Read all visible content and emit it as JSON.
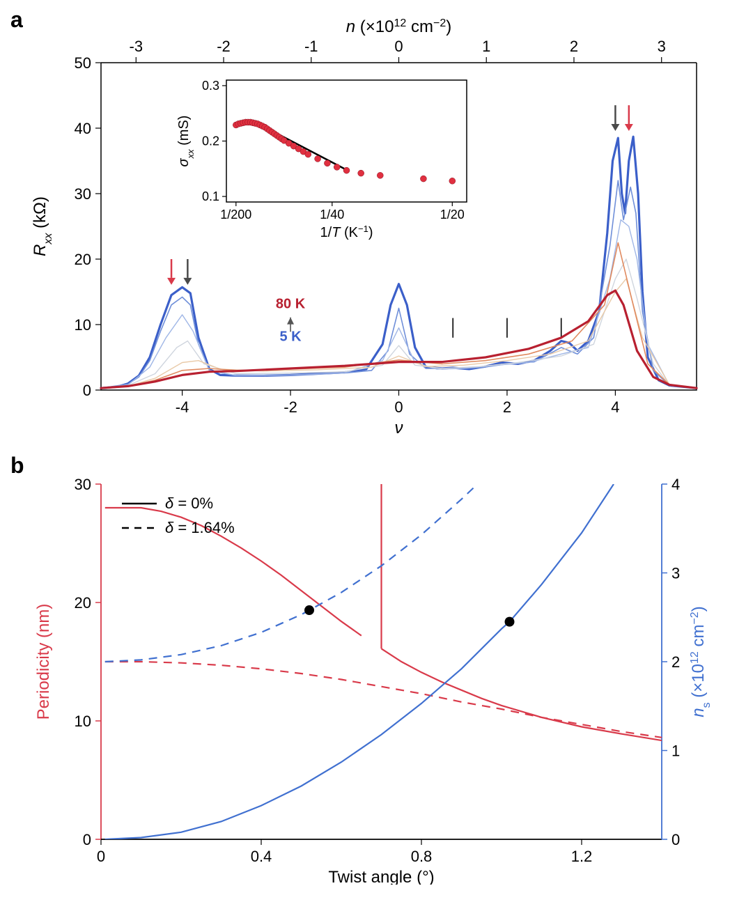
{
  "panel_a": {
    "label": "a",
    "x_domain": [
      -5.5,
      5.5
    ],
    "y_domain": [
      0,
      50
    ],
    "x_ticks": [
      -4,
      -2,
      0,
      2,
      4
    ],
    "y_ticks": [
      0,
      10,
      20,
      30,
      40,
      50
    ],
    "top_ticks": [
      -3,
      -2,
      -1,
      0,
      1,
      2,
      3
    ],
    "x_label": "ν",
    "y_label": "R_{xx} (kΩ)",
    "top_label": "n (×10^{12} cm^{-2})",
    "temp_annot": {
      "cold": "5 K",
      "hot": "80 K",
      "cold_color": "#3b5fc9",
      "hot_color": "#b82030"
    },
    "arrows": {
      "left_red": {
        "x": -4.2,
        "color": "#d93a4a"
      },
      "left_black": {
        "x": -3.9,
        "color": "#4a4a4a"
      },
      "right_black": {
        "x": 4.0,
        "color": "#4a4a4a"
      },
      "right_red": {
        "x": 4.25,
        "color": "#d93a4a"
      }
    },
    "vlines": [
      1,
      2,
      3
    ],
    "series": [
      {
        "color": "#3b5fc9",
        "width": 3.2,
        "pts": [
          [
            -5.5,
            0.3
          ],
          [
            -5.2,
            0.5
          ],
          [
            -5.0,
            1.0
          ],
          [
            -4.8,
            2.2
          ],
          [
            -4.6,
            5
          ],
          [
            -4.4,
            10
          ],
          [
            -4.2,
            14.5
          ],
          [
            -4.0,
            15.7
          ],
          [
            -3.85,
            14.8
          ],
          [
            -3.7,
            8
          ],
          [
            -3.5,
            3.2
          ],
          [
            -3.3,
            2.3
          ],
          [
            -3.0,
            2.2
          ],
          [
            -2.5,
            2.2
          ],
          [
            -2.0,
            2.3
          ],
          [
            -1.5,
            2.5
          ],
          [
            -1.0,
            2.7
          ],
          [
            -0.6,
            3.2
          ],
          [
            -0.3,
            7
          ],
          [
            -0.15,
            13
          ],
          [
            0.0,
            16.2
          ],
          [
            0.15,
            13
          ],
          [
            0.3,
            6.5
          ],
          [
            0.5,
            3.5
          ],
          [
            0.8,
            3.3
          ],
          [
            1.0,
            3.4
          ],
          [
            1.3,
            3.2
          ],
          [
            1.6,
            3.6
          ],
          [
            1.9,
            4.2
          ],
          [
            2.2,
            4.0
          ],
          [
            2.5,
            4.5
          ],
          [
            2.8,
            6.0
          ],
          [
            3.0,
            7.5
          ],
          [
            3.15,
            7.2
          ],
          [
            3.3,
            6.0
          ],
          [
            3.5,
            7.5
          ],
          [
            3.7,
            12
          ],
          [
            3.85,
            24
          ],
          [
            3.95,
            35
          ],
          [
            4.05,
            38.5
          ],
          [
            4.12,
            30
          ],
          [
            4.18,
            27
          ],
          [
            4.25,
            35
          ],
          [
            4.33,
            38.7
          ],
          [
            4.42,
            30
          ],
          [
            4.5,
            15
          ],
          [
            4.6,
            5
          ],
          [
            4.8,
            1.5
          ],
          [
            5.0,
            0.7
          ],
          [
            5.5,
            0.3
          ]
        ]
      },
      {
        "color": "#6f8fd9",
        "width": 1.6,
        "pts": [
          [
            -5.5,
            0.3
          ],
          [
            -5.0,
            0.9
          ],
          [
            -4.8,
            2.0
          ],
          [
            -4.6,
            4.5
          ],
          [
            -4.4,
            9
          ],
          [
            -4.2,
            13
          ],
          [
            -4.0,
            14.2
          ],
          [
            -3.85,
            13
          ],
          [
            -3.7,
            7
          ],
          [
            -3.5,
            3.0
          ],
          [
            -3.0,
            2.2
          ],
          [
            -2.0,
            2.3
          ],
          [
            -1.0,
            2.6
          ],
          [
            -0.5,
            3.0
          ],
          [
            -0.2,
            6
          ],
          [
            0.0,
            12.5
          ],
          [
            0.2,
            5.5
          ],
          [
            0.5,
            3.3
          ],
          [
            1.0,
            3.3
          ],
          [
            1.5,
            3.4
          ],
          [
            2.0,
            4.0
          ],
          [
            2.5,
            4.3
          ],
          [
            3.0,
            6.5
          ],
          [
            3.3,
            5.5
          ],
          [
            3.6,
            8
          ],
          [
            3.9,
            22
          ],
          [
            4.05,
            32
          ],
          [
            4.15,
            26
          ],
          [
            4.28,
            31
          ],
          [
            4.38,
            27
          ],
          [
            4.5,
            12
          ],
          [
            4.7,
            3
          ],
          [
            5.0,
            0.7
          ],
          [
            5.5,
            0.3
          ]
        ]
      },
      {
        "color": "#9fb6e6",
        "width": 1.4,
        "pts": [
          [
            -5.5,
            0.3
          ],
          [
            -5.0,
            0.8
          ],
          [
            -4.6,
            3.5
          ],
          [
            -4.3,
            8
          ],
          [
            -4.0,
            11.5
          ],
          [
            -3.8,
            9
          ],
          [
            -3.5,
            3.0
          ],
          [
            -3.0,
            2.2
          ],
          [
            -2.0,
            2.3
          ],
          [
            -1.0,
            2.6
          ],
          [
            -0.3,
            4.5
          ],
          [
            0.0,
            9.5
          ],
          [
            0.3,
            4.2
          ],
          [
            0.7,
            3.2
          ],
          [
            1.2,
            3.3
          ],
          [
            1.8,
            3.8
          ],
          [
            2.4,
            4.2
          ],
          [
            3.0,
            5.5
          ],
          [
            3.5,
            6.5
          ],
          [
            3.9,
            17
          ],
          [
            4.1,
            26
          ],
          [
            4.25,
            25
          ],
          [
            4.4,
            20
          ],
          [
            4.6,
            7
          ],
          [
            5.0,
            0.7
          ],
          [
            5.5,
            0.3
          ]
        ]
      },
      {
        "color": "#cfd5de",
        "width": 1.4,
        "pts": [
          [
            -5.5,
            0.3
          ],
          [
            -5.0,
            0.7
          ],
          [
            -4.5,
            2.5
          ],
          [
            -4.1,
            6.5
          ],
          [
            -3.9,
            7.5
          ],
          [
            -3.6,
            4
          ],
          [
            -3.0,
            2.5
          ],
          [
            -2.0,
            2.6
          ],
          [
            -1.0,
            2.8
          ],
          [
            -0.3,
            3.8
          ],
          [
            0.0,
            6.8
          ],
          [
            0.3,
            3.8
          ],
          [
            0.8,
            3.3
          ],
          [
            1.5,
            3.6
          ],
          [
            2.2,
            4.2
          ],
          [
            3.0,
            5.2
          ],
          [
            3.6,
            7
          ],
          [
            4.0,
            17
          ],
          [
            4.2,
            20
          ],
          [
            4.4,
            14
          ],
          [
            4.7,
            4
          ],
          [
            5.0,
            0.7
          ],
          [
            5.5,
            0.3
          ]
        ]
      },
      {
        "color": "#e9caa8",
        "width": 1.4,
        "pts": [
          [
            -5.5,
            0.3
          ],
          [
            -5.0,
            0.6
          ],
          [
            -4.5,
            1.8
          ],
          [
            -4.0,
            4.2
          ],
          [
            -3.7,
            4.5
          ],
          [
            -3.3,
            3.2
          ],
          [
            -2.5,
            2.9
          ],
          [
            -1.5,
            3.1
          ],
          [
            -0.5,
            3.5
          ],
          [
            0.0,
            5.2
          ],
          [
            0.5,
            3.6
          ],
          [
            1.2,
            3.8
          ],
          [
            2.0,
            4.5
          ],
          [
            2.8,
            5.5
          ],
          [
            3.5,
            7.5
          ],
          [
            4.0,
            15
          ],
          [
            4.2,
            17
          ],
          [
            4.5,
            8
          ],
          [
            5.0,
            0.8
          ],
          [
            5.5,
            0.3
          ]
        ]
      },
      {
        "color": "#e08a5f",
        "width": 1.6,
        "pts": [
          [
            -5.5,
            0.3
          ],
          [
            -5.0,
            0.6
          ],
          [
            -4.5,
            1.5
          ],
          [
            -4.0,
            3.0
          ],
          [
            -3.5,
            3.3
          ],
          [
            -3.0,
            3.0
          ],
          [
            -2.0,
            3.2
          ],
          [
            -1.0,
            3.5
          ],
          [
            0.0,
            4.6
          ],
          [
            0.8,
            4.0
          ],
          [
            1.6,
            4.5
          ],
          [
            2.4,
            5.5
          ],
          [
            3.2,
            7.5
          ],
          [
            3.8,
            13
          ],
          [
            4.05,
            22.5
          ],
          [
            4.3,
            14
          ],
          [
            4.6,
            4
          ],
          [
            5.0,
            0.8
          ],
          [
            5.5,
            0.3
          ]
        ]
      },
      {
        "color": "#b82030",
        "width": 3.2,
        "pts": [
          [
            -5.5,
            0.3
          ],
          [
            -5.0,
            0.6
          ],
          [
            -4.5,
            1.3
          ],
          [
            -4.0,
            2.3
          ],
          [
            -3.5,
            2.8
          ],
          [
            -3.0,
            2.9
          ],
          [
            -2.0,
            3.3
          ],
          [
            -1.0,
            3.7
          ],
          [
            0.0,
            4.3
          ],
          [
            0.8,
            4.3
          ],
          [
            1.6,
            5.0
          ],
          [
            2.4,
            6.3
          ],
          [
            3.0,
            8.0
          ],
          [
            3.5,
            10.5
          ],
          [
            3.85,
            14.5
          ],
          [
            4.0,
            15.2
          ],
          [
            4.15,
            13
          ],
          [
            4.4,
            6
          ],
          [
            4.7,
            2
          ],
          [
            5.0,
            0.8
          ],
          [
            5.5,
            0.3
          ]
        ]
      }
    ],
    "inset": {
      "x_ticks_labels": [
        "1/200",
        "1/40",
        "1/20"
      ],
      "x_ticks_pos": [
        0.005,
        0.025,
        0.05
      ],
      "x_domain": [
        0.003,
        0.053
      ],
      "y_ticks": [
        0.1,
        0.2,
        0.3
      ],
      "y_labels": [
        "0.1",
        "0.2",
        "0.3"
      ],
      "y_domain": [
        0.09,
        0.31
      ],
      "x_label": "1/T (K^{-1})",
      "y_label": "σ_{xx} (mS)",
      "marker_color": "#e03040",
      "line_color": "#000000",
      "pts": [
        [
          0.005,
          0.229
        ],
        [
          0.0055,
          0.231
        ],
        [
          0.006,
          0.232
        ],
        [
          0.0065,
          0.233
        ],
        [
          0.007,
          0.234
        ],
        [
          0.0075,
          0.234
        ],
        [
          0.008,
          0.234
        ],
        [
          0.0085,
          0.233
        ],
        [
          0.009,
          0.232
        ],
        [
          0.0095,
          0.231
        ],
        [
          0.01,
          0.229
        ],
        [
          0.0105,
          0.227
        ],
        [
          0.011,
          0.225
        ],
        [
          0.0115,
          0.222
        ],
        [
          0.012,
          0.219
        ],
        [
          0.0125,
          0.216
        ],
        [
          0.013,
          0.213
        ],
        [
          0.0135,
          0.21
        ],
        [
          0.014,
          0.207
        ],
        [
          0.0145,
          0.204
        ],
        [
          0.015,
          0.201
        ],
        [
          0.016,
          0.196
        ],
        [
          0.017,
          0.191
        ],
        [
          0.018,
          0.186
        ],
        [
          0.019,
          0.181
        ],
        [
          0.02,
          0.176
        ],
        [
          0.022,
          0.168
        ],
        [
          0.024,
          0.16
        ],
        [
          0.026,
          0.153
        ],
        [
          0.028,
          0.147
        ],
        [
          0.031,
          0.142
        ],
        [
          0.035,
          0.138
        ],
        [
          0.044,
          0.132
        ],
        [
          0.05,
          0.128
        ]
      ],
      "fit": [
        [
          0.011,
          0.225
        ],
        [
          0.028,
          0.148
        ]
      ]
    }
  },
  "panel_b": {
    "label": "b",
    "x_domain": [
      0,
      1.4
    ],
    "y_left_domain": [
      0,
      30
    ],
    "y_right_domain": [
      0,
      4
    ],
    "x_ticks": [
      0,
      0.4,
      0.8,
      1.2
    ],
    "y_left_ticks": [
      0,
      10,
      20,
      30
    ],
    "y_right_ticks": [
      0,
      1,
      2,
      3,
      4
    ],
    "x_label": "Twist angle (°)",
    "y_left_label": "Periodicity (nm)",
    "y_right_label": "n_s (×10^{12} cm^{-2})",
    "left_color": "#d93a4a",
    "right_color": "#4070d0",
    "legend": [
      {
        "style": "solid",
        "label": "δ = 0%"
      },
      {
        "style": "dashed",
        "label": "δ = 1.64%"
      }
    ],
    "curve_red_solid": [
      [
        0.01,
        28
      ],
      [
        0.05,
        28
      ],
      [
        0.1,
        28
      ],
      [
        0.15,
        27.7
      ],
      [
        0.2,
        27.2
      ],
      [
        0.25,
        26.5
      ],
      [
        0.3,
        25.6
      ],
      [
        0.35,
        24.6
      ],
      [
        0.4,
        23.5
      ],
      [
        0.45,
        22.3
      ],
      [
        0.5,
        21.0
      ],
      [
        0.55,
        19.7
      ],
      [
        0.6,
        18.4
      ],
      [
        0.65,
        17.2
      ],
      [
        0.7,
        30
      ],
      [
        0.7,
        16.1
      ],
      [
        0.75,
        15.0
      ],
      [
        0.8,
        14.1
      ],
      [
        0.85,
        13.3
      ],
      [
        0.9,
        12.6
      ],
      [
        0.95,
        11.9
      ],
      [
        1.0,
        11.3
      ],
      [
        1.1,
        10.3
      ],
      [
        1.2,
        9.5
      ],
      [
        1.3,
        8.9
      ],
      [
        1.4,
        8.35
      ]
    ],
    "curve_red_dashed": [
      [
        0.01,
        15.0
      ],
      [
        0.1,
        15.0
      ],
      [
        0.2,
        14.9
      ],
      [
        0.3,
        14.7
      ],
      [
        0.4,
        14.4
      ],
      [
        0.5,
        14.0
      ],
      [
        0.6,
        13.5
      ],
      [
        0.7,
        12.9
      ],
      [
        0.8,
        12.3
      ],
      [
        0.9,
        11.6
      ],
      [
        1.0,
        11.0
      ],
      [
        1.1,
        10.3
      ],
      [
        1.2,
        9.7
      ],
      [
        1.3,
        9.1
      ],
      [
        1.4,
        8.6
      ]
    ],
    "curve_blue_solid": [
      [
        0.01,
        0.0
      ],
      [
        0.1,
        0.02
      ],
      [
        0.2,
        0.08
      ],
      [
        0.3,
        0.2
      ],
      [
        0.4,
        0.38
      ],
      [
        0.5,
        0.6
      ],
      [
        0.6,
        0.87
      ],
      [
        0.7,
        1.18
      ],
      [
        0.8,
        1.53
      ],
      [
        0.9,
        1.92
      ],
      [
        1.0,
        2.37
      ],
      [
        1.02,
        2.45
      ],
      [
        1.1,
        2.87
      ],
      [
        1.2,
        3.45
      ],
      [
        1.28,
        4.0
      ]
    ],
    "curve_blue_dashed": [
      [
        0.01,
        2.0
      ],
      [
        0.1,
        2.02
      ],
      [
        0.2,
        2.08
      ],
      [
        0.3,
        2.18
      ],
      [
        0.4,
        2.33
      ],
      [
        0.5,
        2.53
      ],
      [
        0.52,
        2.58
      ],
      [
        0.6,
        2.78
      ],
      [
        0.7,
        3.08
      ],
      [
        0.8,
        3.43
      ],
      [
        0.9,
        3.83
      ],
      [
        0.94,
        4.0
      ]
    ],
    "markers": [
      {
        "x": 0.52,
        "y_right": 2.58
      },
      {
        "x": 1.02,
        "y_right": 2.45
      }
    ]
  }
}
